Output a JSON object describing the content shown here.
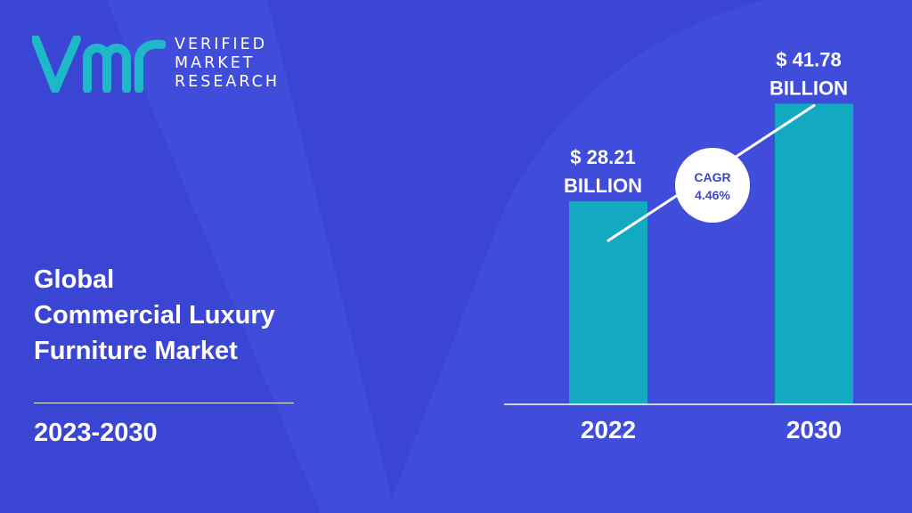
{
  "brand": {
    "logo_name": "vmr-logo",
    "lines": [
      "VERIFIED",
      "MARKET",
      "RESEARCH"
    ]
  },
  "headline": {
    "lines": [
      "Global",
      "Commercial Luxury",
      "Furniture Market"
    ],
    "period": "2023-2030"
  },
  "colors": {
    "background": "#3b45d4",
    "background_shape": "#4a56e0",
    "bar": "#13a9c1",
    "logo_teal": "#1fb8c9",
    "text": "#ffffff",
    "cagr_text": "#3b45d4"
  },
  "chart_data": {
    "type": "bar",
    "categories": [
      "2022",
      "2030"
    ],
    "values": [
      28.21,
      41.78
    ],
    "value_labels": [
      [
        "$ 28.21",
        "BILLION"
      ],
      [
        "$ 41.78",
        "BILLION"
      ]
    ],
    "unit": "BILLION",
    "ylim": [
      0,
      50
    ],
    "grid": false,
    "legend": "none",
    "annotation": {
      "lines": [
        "CAGR",
        "4.46%"
      ]
    }
  }
}
